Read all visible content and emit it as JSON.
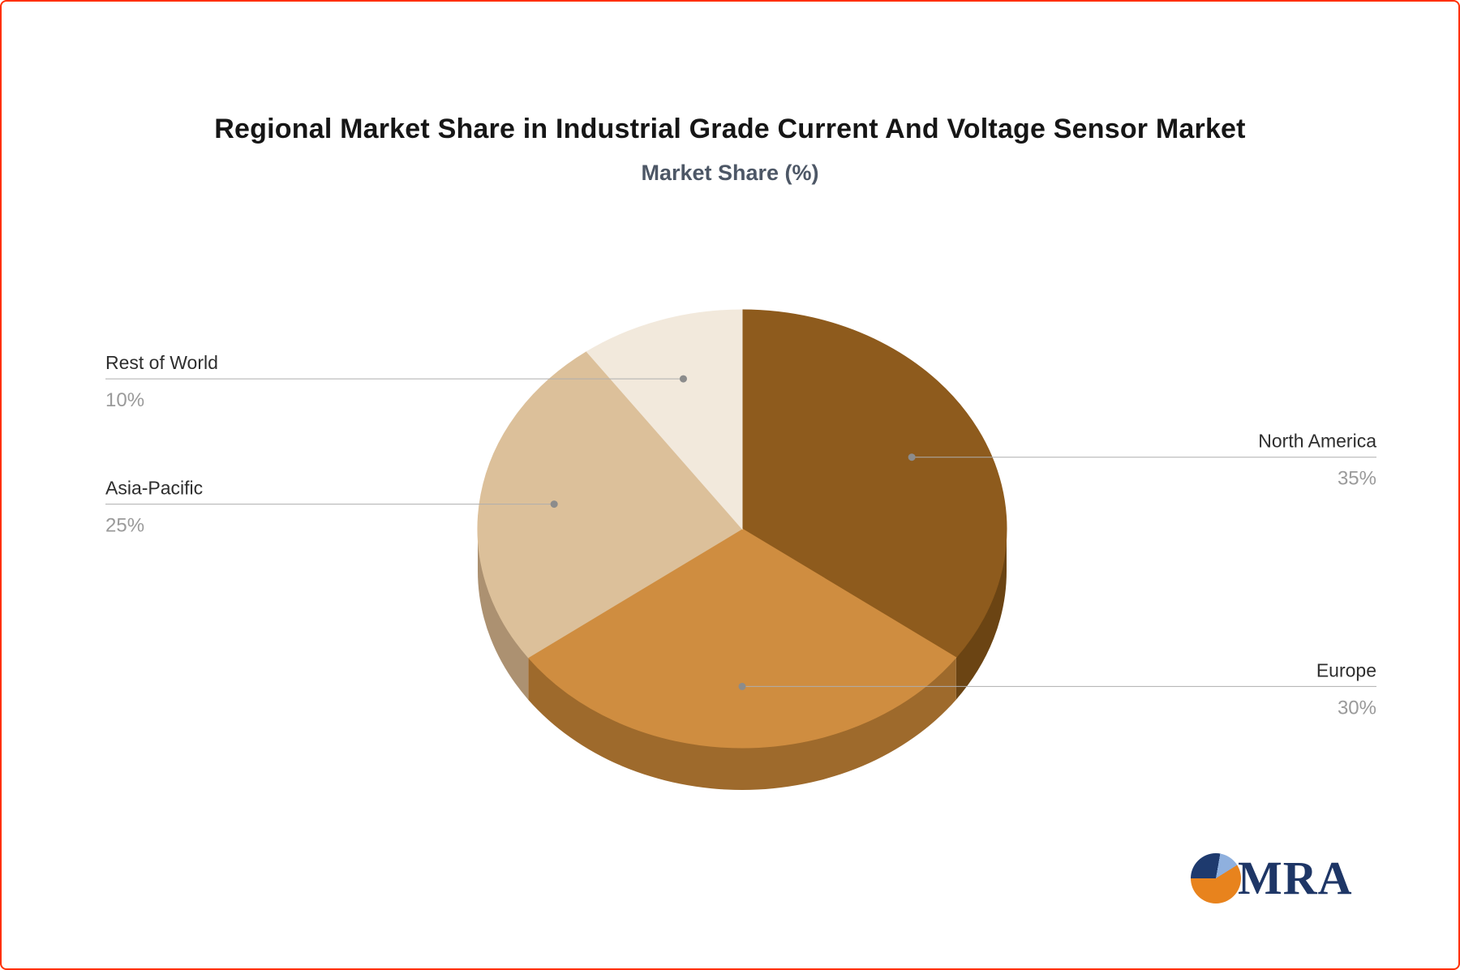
{
  "chart_data": {
    "type": "pie",
    "title": "Regional Market Share in Industrial Grade Current And Voltage Sensor Market",
    "subtitle": "Market Share (%)",
    "unit": "%",
    "start_angle_deg": -90,
    "direction": "clockwise",
    "style": "3d",
    "legend_position": "none",
    "slices": [
      {
        "label": "North America",
        "value": 35,
        "display_value": "35%",
        "color": "#8E5B1D",
        "side_color": "#6B4413",
        "label_side": "right"
      },
      {
        "label": "Europe",
        "value": 30,
        "display_value": "30%",
        "color": "#CF8D40",
        "side_color": "#9E6A2C",
        "label_side": "right"
      },
      {
        "label": "Asia-Pacific",
        "value": 25,
        "display_value": "25%",
        "color": "#DCC09A",
        "side_color": "#AC9171",
        "label_side": "left"
      },
      {
        "label": "Rest of World",
        "value": 10,
        "display_value": "10%",
        "color": "#F2E9DC",
        "side_color": "#C8BCA9",
        "label_side": "left"
      }
    ],
    "label_color": "#2e2e2e",
    "value_color": "#9a9a9a",
    "leader_line_color": "#aeaeae",
    "leader_dot_color": "#8c8c8c"
  },
  "logo": {
    "text": "MRA",
    "text_color": "#1e3666",
    "icon_colors": [
      "#e8831d",
      "#1e3a6e",
      "#8fb0de"
    ]
  }
}
